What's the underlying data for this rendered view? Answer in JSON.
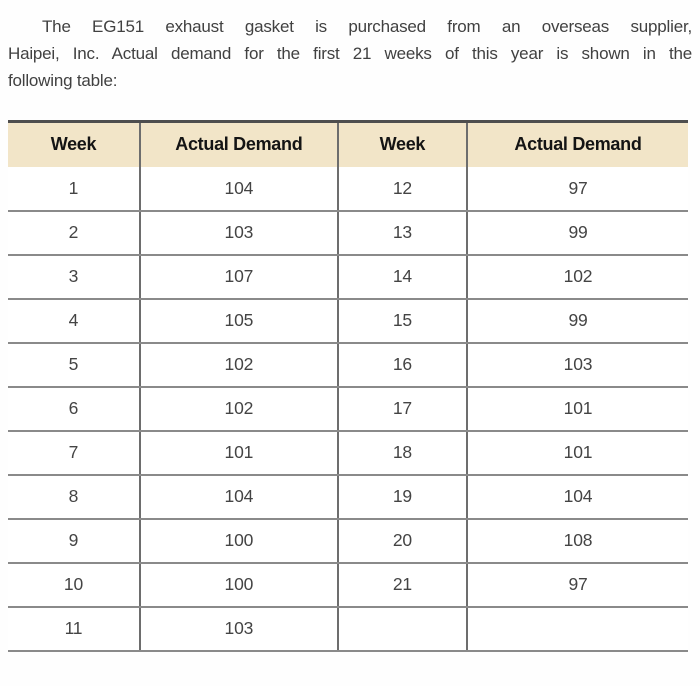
{
  "paragraph": {
    "lines": [
      "The EG151 exhaust gasket is purchased from an overseas supplier,",
      "Haipei, Inc. Actual demand for the first 21 weeks of this year is shown in the",
      "following table:"
    ]
  },
  "table": {
    "headers": [
      "Week",
      "Actual Demand",
      "Week",
      "Actual Demand"
    ],
    "rows": [
      [
        "1",
        "104",
        "12",
        "97"
      ],
      [
        "2",
        "103",
        "13",
        "99"
      ],
      [
        "3",
        "107",
        "14",
        "102"
      ],
      [
        "4",
        "105",
        "15",
        "99"
      ],
      [
        "5",
        "102",
        "16",
        "103"
      ],
      [
        "6",
        "102",
        "17",
        "101"
      ],
      [
        "7",
        "101",
        "18",
        "101"
      ],
      [
        "8",
        "104",
        "19",
        "104"
      ],
      [
        "9",
        "100",
        "20",
        "108"
      ],
      [
        "10",
        "100",
        "21",
        "97"
      ],
      [
        "11",
        "103",
        "",
        ""
      ]
    ]
  },
  "colors": {
    "header_background": "#f2e5c8",
    "table_top_border": "#4e4e4e",
    "row_line": "#8a8a8a",
    "column_divider": "#6d6d6d",
    "body_text": "#414141"
  }
}
